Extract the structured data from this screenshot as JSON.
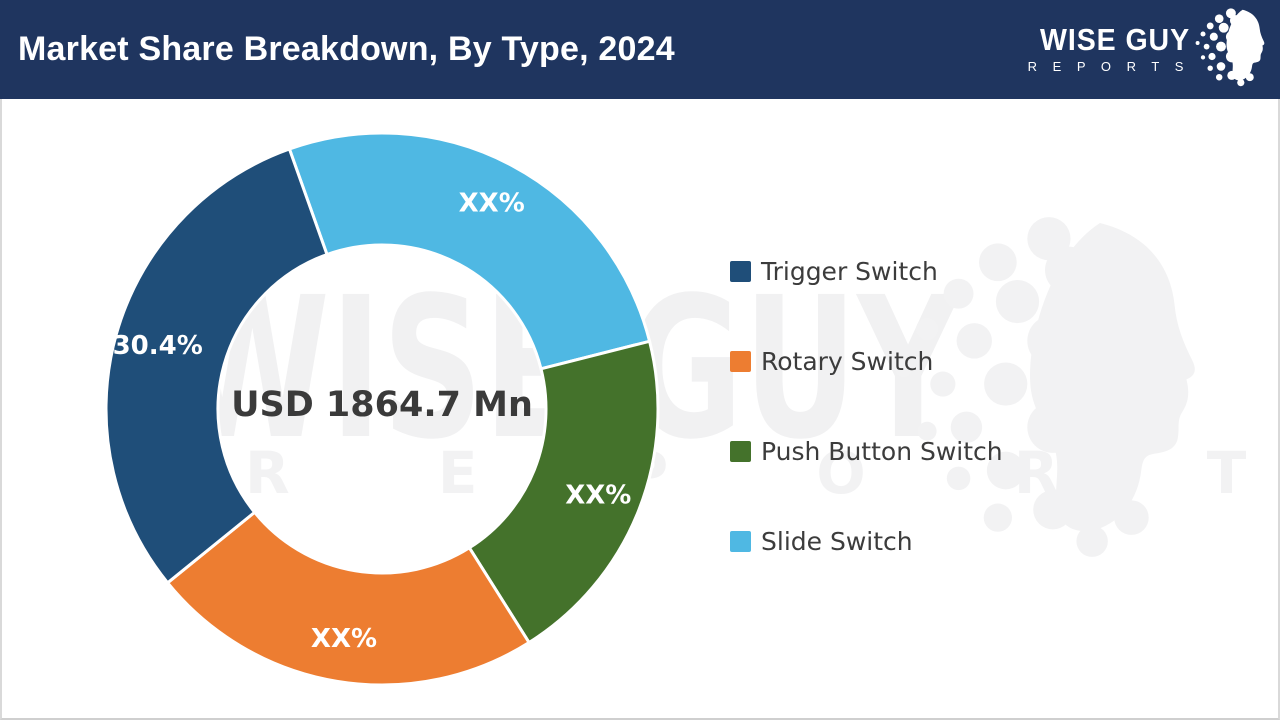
{
  "header": {
    "title": "Market Share Breakdown, By Type, 2024",
    "bg_color": "#1F355F",
    "logo": {
      "line1": "WISE GUY",
      "line2": "R E P O R T S"
    }
  },
  "chart_data": {
    "type": "donut",
    "title": "Market Share Breakdown, By Type, 2024",
    "center_label": "USD 1864.7 Mn",
    "units": "percent market share",
    "legend_position": "right",
    "start_angle_deg": -19.6,
    "slices": [
      {
        "name": "Slide Switch",
        "display_label": "XX%",
        "pct": 26.5,
        "pct_is_estimated": true,
        "color": "#4FB8E3"
      },
      {
        "name": "Push Button Switch",
        "display_label": "XX%",
        "pct": 20.0,
        "pct_is_estimated": true,
        "color": "#44722B"
      },
      {
        "name": "Rotary Switch",
        "display_label": "XX%",
        "pct": 23.1,
        "pct_is_estimated": true,
        "color": "#ED7D31"
      },
      {
        "name": "Trigger Switch",
        "display_label": "30.4%",
        "pct": 30.4,
        "pct_is_estimated": false,
        "color": "#1F4E79"
      }
    ]
  },
  "legend": {
    "items": [
      {
        "label": "Trigger Switch",
        "color": "#1F4E79"
      },
      {
        "label": "Rotary Switch",
        "color": "#ED7D31"
      },
      {
        "label": "Push Button Switch",
        "color": "#44722B"
      },
      {
        "label": "Slide Switch",
        "color": "#4FB8E3"
      }
    ]
  },
  "watermark": {
    "line1": "WISE GUY",
    "line2": "R E P O R T S"
  }
}
